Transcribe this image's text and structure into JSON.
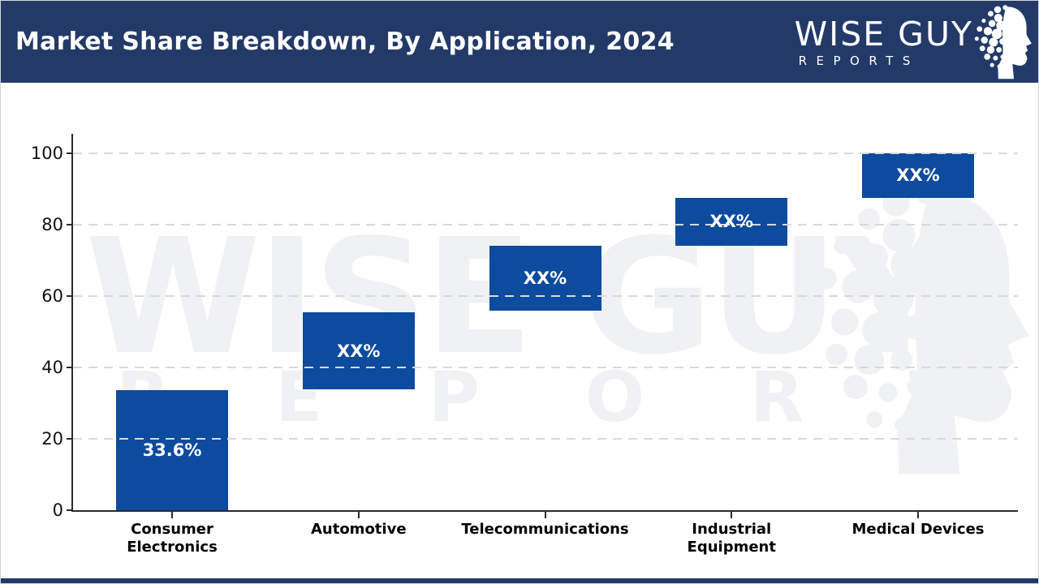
{
  "header": {
    "title": "Market Share Breakdown, By Application, 2024",
    "logo": {
      "wordmark": "WISE GUY",
      "subtext": "REPORTS"
    }
  },
  "watermark": {
    "line1": "WISE GUY",
    "line2": "R E P O R T S"
  },
  "theme": {
    "header_bg": "#233a69",
    "footer_bg": "#233a69",
    "bar_color": "#0c4b9e",
    "bar_label_color": "#ffffff",
    "axis_color": "#2b2b2b",
    "grid_color": "#d9d9d9",
    "watermark_color": "#f0f1f3",
    "title_color": "#ffffff"
  },
  "chart_data": {
    "type": "bar",
    "variant": "waterfall",
    "title": "Market Share Breakdown, By Application, 2024",
    "categories": [
      "Consumer Electronics",
      "Automotive",
      "Telecommunications",
      "Industrial Equipment",
      "Medical Devices"
    ],
    "segments": [
      {
        "category": "Consumer Electronics",
        "category_lines": [
          "Consumer",
          "Electronics"
        ],
        "start": 0,
        "end": 33.6,
        "label": "33.6%"
      },
      {
        "category": "Automotive",
        "category_lines": [
          "Automotive"
        ],
        "start": 33.8,
        "end": 55.5,
        "label": "XX%"
      },
      {
        "category": "Telecommunications",
        "category_lines": [
          "Telecommunications"
        ],
        "start": 55.8,
        "end": 74.0,
        "label": "XX%"
      },
      {
        "category": "Industrial Equipment",
        "category_lines": [
          "Industrial",
          "Equipment"
        ],
        "start": 74.2,
        "end": 87.4,
        "label": "XX%"
      },
      {
        "category": "Medical Devices",
        "category_lines": [
          "Medical Devices"
        ],
        "start": 87.6,
        "end": 100.0,
        "label": "XX%"
      }
    ],
    "ylim": [
      0,
      100
    ],
    "yticks": [
      0,
      20,
      40,
      60,
      80,
      100
    ],
    "xlabel": "",
    "ylabel": "",
    "grid": "horizontal-dashed",
    "legend": "none"
  }
}
